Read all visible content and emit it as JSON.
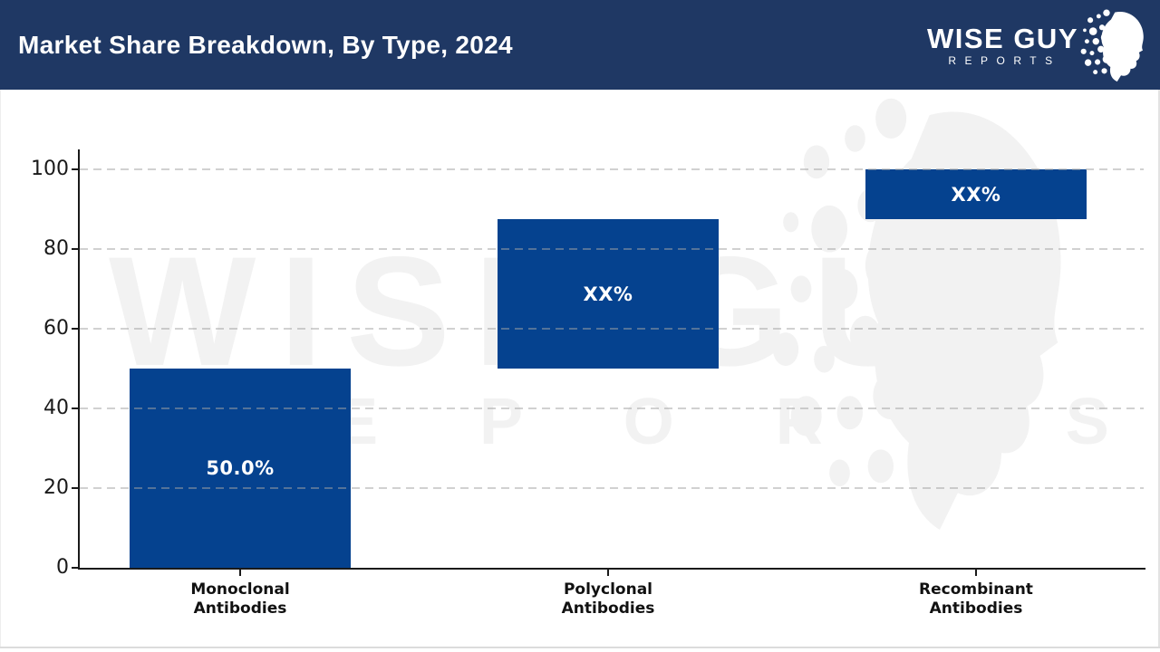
{
  "header": {
    "title": "Market Share Breakdown, By Type, 2024",
    "logo": {
      "line1": "WISE GUY",
      "line2": "REPORTS"
    }
  },
  "watermark": {
    "line1": "WISE GUY",
    "line2": "R E P O R T S"
  },
  "chart_data": {
    "type": "bar",
    "subtype": "waterfall-floating-segments",
    "title": "Market Share Breakdown, By Type, 2024",
    "categories": [
      {
        "line1": "Monoclonal",
        "line2": "Antibodies"
      },
      {
        "line1": "Polyclonal",
        "line2": "Antibodies"
      },
      {
        "line1": "Recombinant",
        "line2": "Antibodies"
      }
    ],
    "series": [
      {
        "name": "Market Share (%)",
        "segments": [
          {
            "start": 0,
            "end": 50,
            "size": 50,
            "label": "50.0%"
          },
          {
            "start": 50,
            "end": 87.5,
            "size": 37.5,
            "label": "XX%"
          },
          {
            "start": 87.5,
            "end": 100,
            "size": 12.5,
            "label": "XX%"
          }
        ]
      }
    ],
    "ylim": [
      0,
      105
    ],
    "yticks": [
      0,
      20,
      40,
      60,
      80,
      100
    ],
    "xlabel": "",
    "ylabel": "",
    "grid": "horizontal-dashed",
    "legend": "none",
    "colors": {
      "bar": "#05428f",
      "header_bg": "#1f3864",
      "bar_label_text": "#ffffff",
      "axis": "#1a1a1a"
    }
  }
}
